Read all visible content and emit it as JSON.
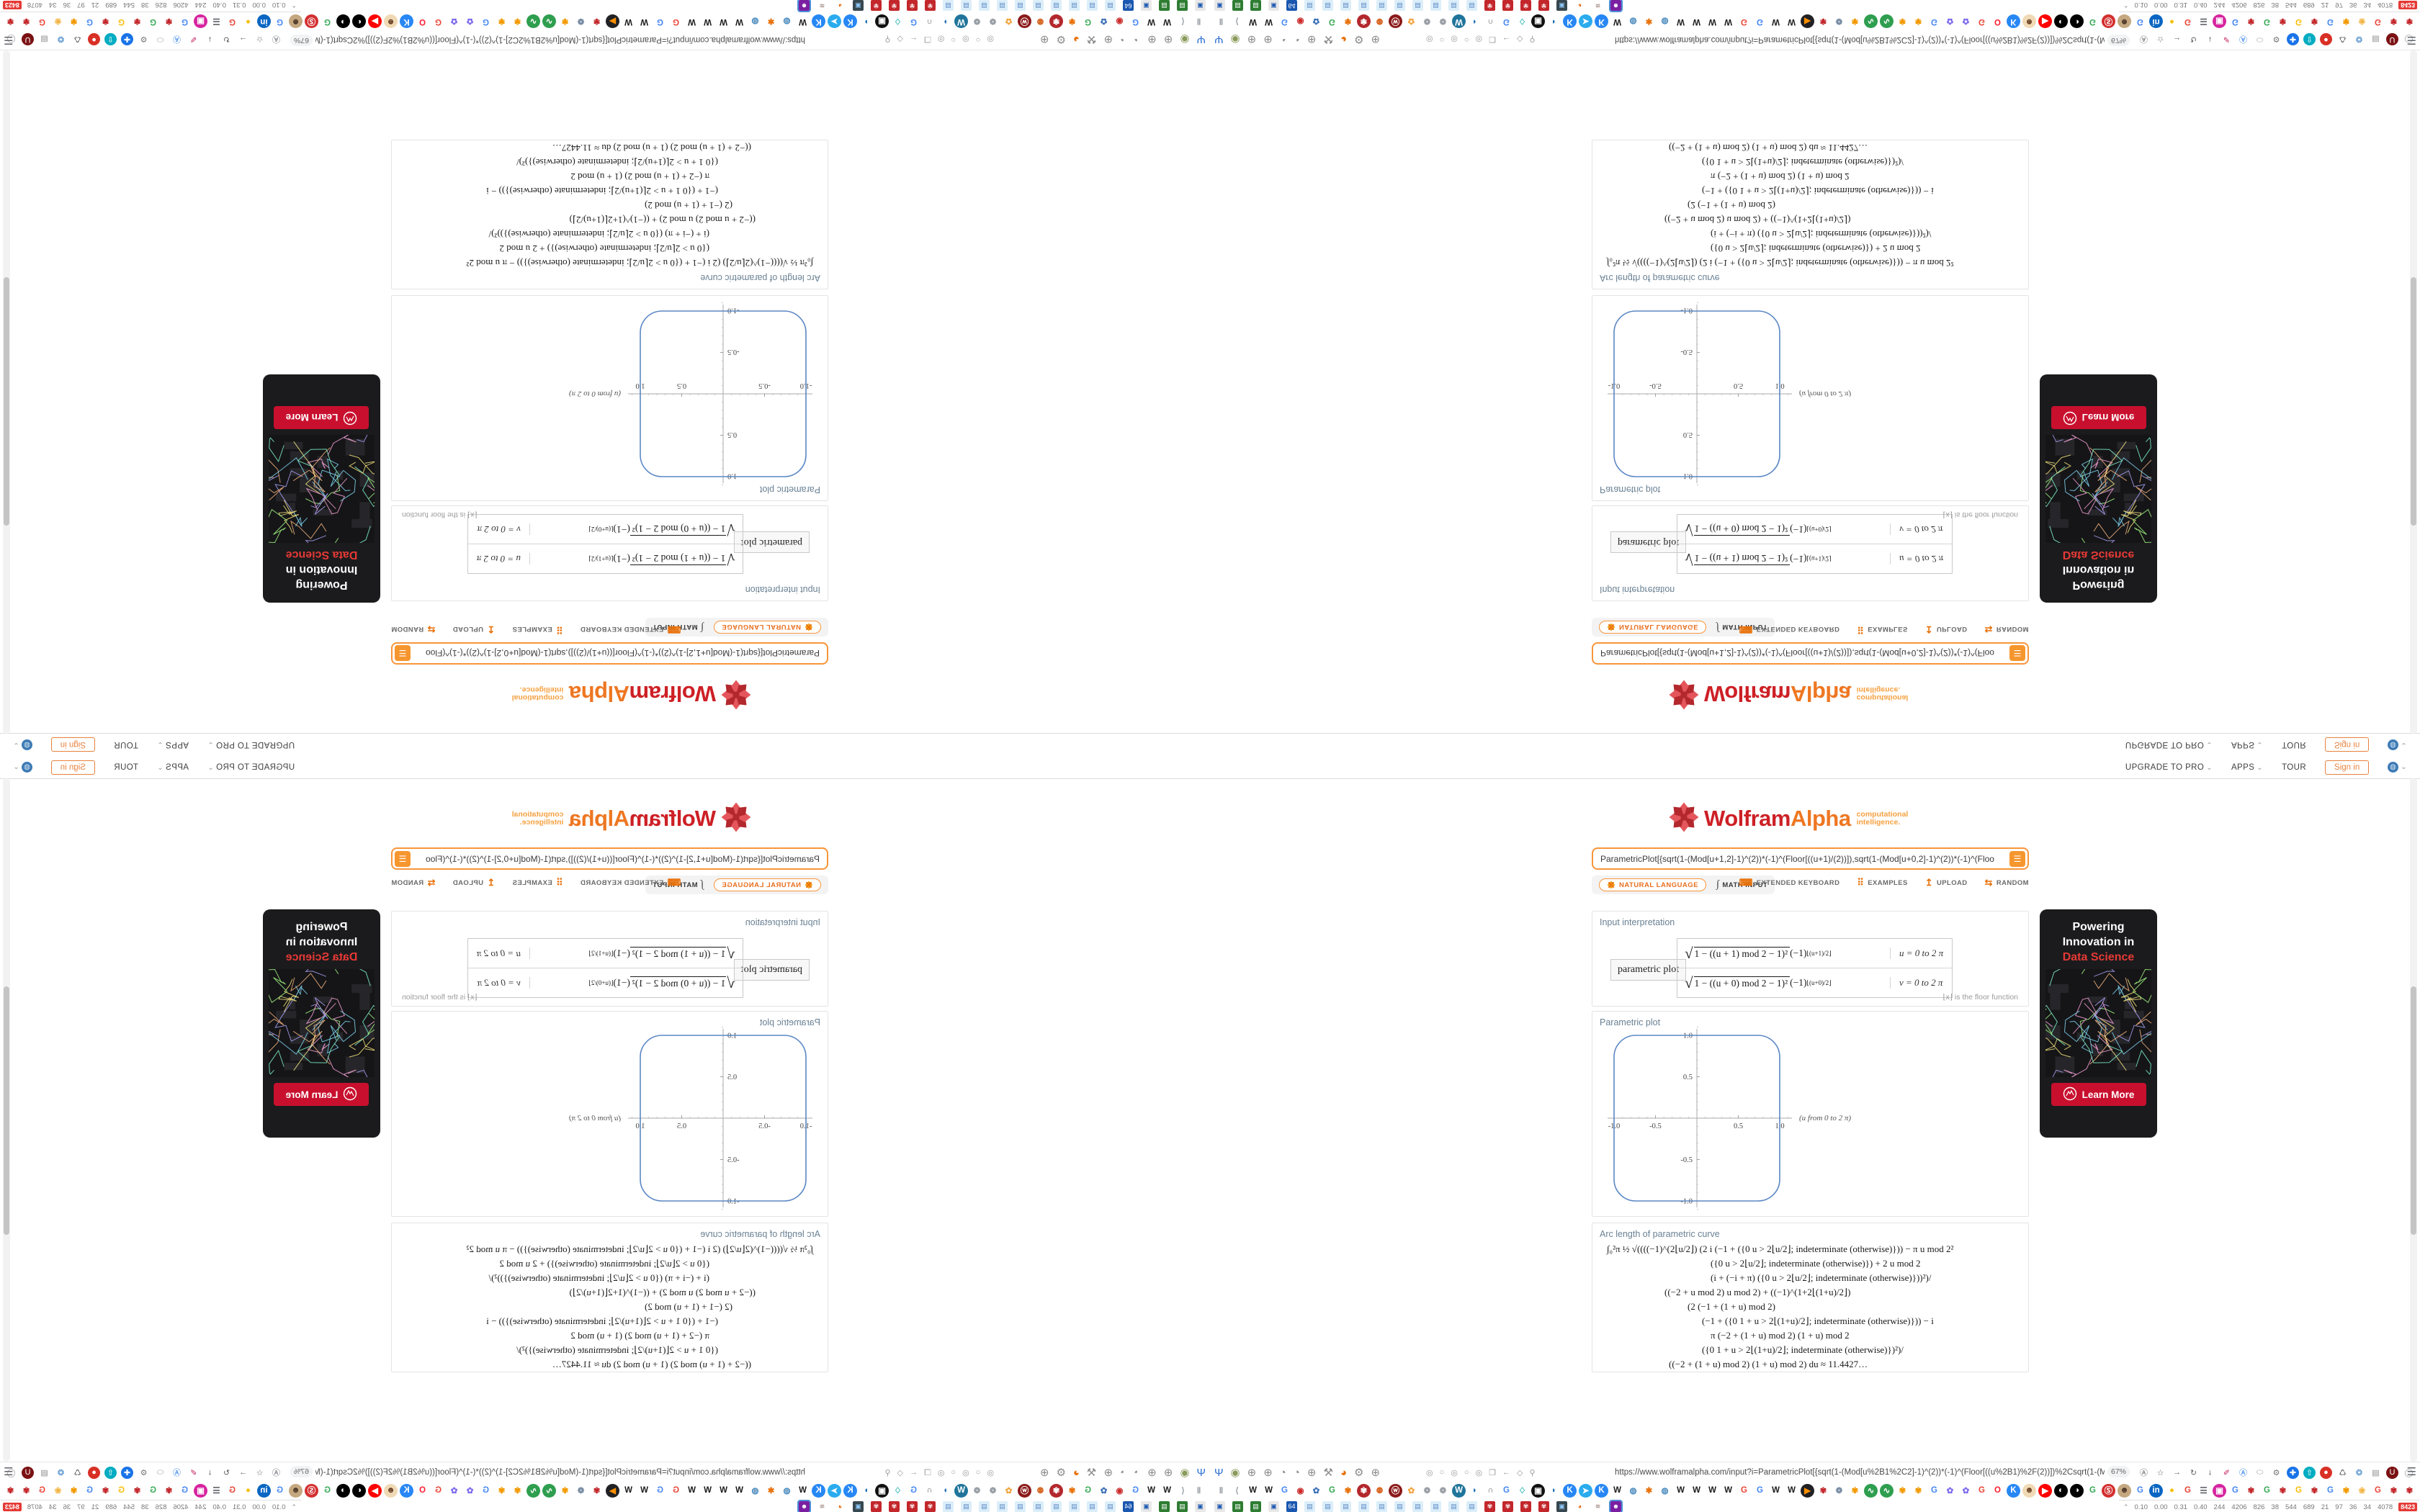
{
  "glyphs": {
    "caret_down": "⌄",
    "caret_up": "⌃",
    "chev_right": "❯",
    "menu": "☰",
    "star": "☆",
    "back": "←",
    "submit": "☰",
    "globe": "◍"
  },
  "page": {
    "nav": {
      "upgrade": "UPGRADE TO PRO",
      "apps": "APPS",
      "tour": "TOUR",
      "sign_in": "Sign in"
    },
    "logo": {
      "wolfram": "Wolfram",
      "alpha": "Alpha",
      "tagline1": "computational",
      "tagline2": "intelligence."
    },
    "query_input": {
      "value": "ParametricPlot[{sqrt(1-(Mod[u+1,2]-1)^(2))*(-1)^(Floor[((u+1)/(2))]),sqrt(1-(Mod[u+0,2]-1)^(2))*(-1)^(Floo"
    },
    "modes": {
      "natural": "NATURAL LANGUAGE",
      "math": "MATH INPUT",
      "math_icon": "∫"
    },
    "tools": [
      {
        "icon": "⌨",
        "label": "EXTENDED KEYBOARD"
      },
      {
        "icon": "⠿",
        "label": "EXAMPLES"
      },
      {
        "icon": "↥",
        "label": "UPLOAD"
      },
      {
        "icon": "⇆",
        "label": "RANDOM"
      }
    ],
    "interpretation": {
      "title": "Input interpretation",
      "label": "parametric plot",
      "rows": [
        {
          "radicand": "1 − ((u + 1) mod 2 − 1)²",
          "base": "(−1)",
          "exp": "⌊(u+1)/2⌋",
          "range": "u = 0 to 2 π"
        },
        {
          "radicand": "1 − ((u + 0) mod 2 − 1)²",
          "base": "(−1)",
          "exp": "⌊(u+0)/2⌋",
          "range": "v = 0 to 2 π"
        }
      ],
      "footnote": "⌊x⌋ is the floor function"
    },
    "plot": {
      "title": "Parametric plot",
      "axis_note": "(u from 0 to 2 π)",
      "x_ticks": [
        {
          "v": -1,
          "label": "-1.0"
        },
        {
          "v": -0.5,
          "label": "-0.5"
        },
        {
          "v": 0.5,
          "label": "0.5"
        },
        {
          "v": 1,
          "label": "1.0"
        }
      ],
      "y_ticks": [
        {
          "v": 1,
          "label": "1.0"
        },
        {
          "v": 0.5,
          "label": "0.5"
        },
        {
          "v": -0.5,
          "label": "-0.5"
        },
        {
          "v": -1,
          "label": "-1.0"
        }
      ],
      "curve_color": "#5b87c5"
    },
    "arc": {
      "title": "Arc length of parametric curve",
      "lines": [
        {
          "indent": 6,
          "text": "∫₀²π  ½ √((((−1)^(2⌊u/2⌋) (2 i (−1 + ({0  u > 2⌊u/2⌋; indeterminate (otherwise)})) − π u mod 2²"
        },
        {
          "indent": 150,
          "text": "({0  u > 2⌊u/2⌋; indeterminate (otherwise)}) + 2 u mod 2"
        },
        {
          "indent": 150,
          "text": "(i + (−i + π) ({0  u > 2⌊u/2⌋; indeterminate (otherwise)}))²)/"
        },
        {
          "indent": 86,
          "text": "((−2 + u mod 2) u mod 2) + ((−1)^(1+2⌊(1+u)/2⌋)"
        },
        {
          "indent": 118,
          "text": "(2 (−1 + (1 + u) mod 2)"
        },
        {
          "indent": 138,
          "text": "(−1 + ({0  1 + u > 2⌊(1+u)/2⌋; indeterminate (otherwise)})) − i"
        },
        {
          "indent": 150,
          "text": "π (−2 + (1 + u) mod 2) (1 + u) mod 2"
        },
        {
          "indent": 138,
          "text": "({0  1 + u > 2⌊(1+u)/2⌋; indeterminate (otherwise)})²)/"
        },
        {
          "indent": 92,
          "text": "((−2 + (1 + u) mod 2) (1 + u) mod 2) du ≈ 11.4427…"
        }
      ]
    },
    "ad": {
      "line1": "Powering",
      "line2": "Innovation in",
      "line3": "Data Science",
      "button": "Learn More"
    }
  },
  "chrome": {
    "url": "https://www.wolframalpha.com/input?i=ParametricPlot[{sqrt(1-(Mod[u%2B1%2C2]-1)^(2))*(-1)^(Floor[((u%2B1)%2F(2))])%2Csqrt(1-(Mod[u%2B0%2C2]-1)^(2))*(-1)^(Floor[((u%2B0",
    "zoom": "67%",
    "left_icons": [
      {
        "g": "Ψ",
        "fg": "#2f6fd6"
      },
      {
        "g": "◉",
        "fg": "#8a9a5b"
      },
      {
        "g": "⊕",
        "fg": "#8a8a8a"
      },
      {
        "g": "⊕",
        "fg": "#8a8a8a"
      },
      {
        "g": "◔",
        "fg": "#8a8a8a"
      },
      {
        "g": "◔",
        "fg": "#8a8a8a"
      },
      {
        "g": "⊕",
        "fg": "#8a8a8a"
      },
      {
        "g": "⚒",
        "fg": "#8a8a8a"
      },
      {
        "g": "◕",
        "fg": "#e8710a"
      },
      {
        "g": "⚙",
        "fg": "#8a8a8a"
      },
      {
        "g": "⊕",
        "fg": "#8a8a8a"
      }
    ],
    "dot_icons": [
      {
        "g": "◎"
      },
      {
        "g": "○"
      },
      {
        "g": "◎"
      },
      {
        "g": "○"
      },
      {
        "g": "◎"
      },
      {
        "g": "❐"
      },
      {
        "g": "←"
      },
      {
        "g": "◇"
      },
      {
        "g": "⚲"
      }
    ],
    "action_icons": [
      {
        "g": "Ⓐ",
        "fg": "#5f6368"
      },
      {
        "g": "☆",
        "fg": "#5f6368"
      },
      {
        "g": "→",
        "fg": "#5f6368"
      },
      {
        "g": "↻",
        "fg": "#5f6368"
      },
      {
        "g": "↓",
        "fg": "#333333"
      },
      {
        "g": "✐",
        "fg": "#c2185b"
      },
      {
        "g": "Ⓐ",
        "fg": "#1a73e8"
      },
      {
        "g": "⬭",
        "fg": "#9e9e9e"
      },
      {
        "g": "⚙",
        "fg": "#757575"
      },
      {
        "g": "✚",
        "bg": "#1a73e8",
        "fg": "#ffffff"
      },
      {
        "g": "⇧",
        "bg": "#00acc1",
        "fg": "#ffffff"
      },
      {
        "g": "●",
        "bg": "#d93025",
        "fg": "#ffffff"
      },
      {
        "g": "♺",
        "fg": "#333333"
      },
      {
        "g": "❂",
        "fg": "#3b82c4"
      },
      {
        "g": "▤",
        "fg": "#8a8a8a"
      },
      {
        "g": "U",
        "bg": "#7b1113",
        "fg": "#ffffff"
      },
      {
        "g": "◯",
        "fg": "#9e9e9e"
      },
      {
        "g": "⊕",
        "fg": "#9e9e9e"
      },
      {
        "g": "⚐",
        "fg": "#8a8a8a"
      },
      {
        "g": "⚒",
        "fg": "#8a8a8a"
      },
      {
        "g": "⚙",
        "fg": "#8a8a8a"
      }
    ],
    "favicons": [
      {
        "g": "Ⅱ",
        "bg": "#ffffff",
        "fg": "#9aa0a6"
      },
      {
        "g": "⟨",
        "bg": "#ffffff",
        "fg": "#9aa0a6"
      },
      {
        "g": "W",
        "bg": "#ffffff",
        "fg": "#1a1a1a"
      },
      {
        "g": "W",
        "bg": "#ffffff",
        "fg": "#1a1a1a"
      },
      {
        "g": "G",
        "bg": "#ffffff",
        "fg": "#4285f4"
      },
      {
        "g": "◉",
        "bg": "#ffffff",
        "fg": "#cc2b2b"
      },
      {
        "g": "✿",
        "bg": "#ffffff",
        "fg": "#3b6fb6"
      },
      {
        "g": "G",
        "bg": "#ffffff",
        "fg": "#34a853"
      },
      {
        "g": "✾",
        "bg": "#ffffff",
        "fg": "#e8710a"
      },
      {
        "g": "✾",
        "bg": "#b3282d",
        "fg": "#ffffff"
      },
      {
        "g": "⚉",
        "bg": "#ffffff",
        "fg": "#d86b2a"
      },
      {
        "g": "ⓦ",
        "bg": "#8b1a1a",
        "fg": "#ffffff"
      },
      {
        "g": "✿",
        "bg": "#ffffff",
        "fg": "#f3a33c"
      },
      {
        "g": "❁",
        "bg": "#ffffff",
        "fg": "#9aa0a6"
      },
      {
        "g": "❁",
        "bg": "#ffffff",
        "fg": "#9aa0a6"
      },
      {
        "g": "W",
        "bg": "#21759b",
        "fg": "#ffffff"
      },
      {
        "g": "◗",
        "bg": "#ffffff",
        "fg": "#1767ae"
      },
      {
        "g": "∩",
        "bg": "#ffffff",
        "fg": "#5f6368"
      },
      {
        "g": "G",
        "bg": "#ffffff",
        "fg": "#4285f4"
      },
      {
        "g": "♢",
        "bg": "#ffffff",
        "fg": "#18b0b0"
      },
      {
        "g": "▣",
        "bg": "#111111",
        "fg": "#ffffff"
      },
      {
        "g": "◗",
        "bg": "#ffffff",
        "fg": "#1767ae"
      },
      {
        "g": "K",
        "bg": "#2787f5",
        "fg": "#ffffff"
      },
      {
        "g": "➤",
        "bg": "#2aabee",
        "fg": "#ffffff"
      },
      {
        "g": "K",
        "bg": "#2787f5",
        "fg": "#ffffff"
      },
      {
        "g": "W",
        "bg": "#ffffff",
        "fg": "#1a1a1a"
      },
      {
        "g": "◍",
        "bg": "#ffffff",
        "fg": "#4b8bbe"
      },
      {
        "g": "✱",
        "bg": "#ffffff",
        "fg": "#e8710a"
      },
      {
        "g": "◍",
        "bg": "#ffffff",
        "fg": "#4b8bbe"
      },
      {
        "g": "W",
        "bg": "#ffffff",
        "fg": "#1a1a1a"
      },
      {
        "g": "W",
        "bg": "#ffffff",
        "fg": "#1a1a1a"
      },
      {
        "g": "W",
        "bg": "#ffffff",
        "fg": "#1a1a1a"
      },
      {
        "g": "W",
        "bg": "#ffffff",
        "fg": "#1a1a1a"
      },
      {
        "g": "G",
        "bg": "#ffffff",
        "fg": "#ea4335"
      },
      {
        "g": "G",
        "bg": "#ffffff",
        "fg": "#4285f4"
      },
      {
        "g": "W",
        "bg": "#ffffff",
        "fg": "#1a1a1a"
      },
      {
        "g": "W",
        "bg": "#ffffff",
        "fg": "#1a1a1a"
      },
      {
        "g": "▶",
        "bg": "#202124",
        "fg": "#ff8f00"
      },
      {
        "g": "✾",
        "bg": "#ffffff",
        "fg": "#c3272b"
      },
      {
        "g": "❁",
        "bg": "#ffffff",
        "fg": "#7b8fa6"
      },
      {
        "g": "✾",
        "bg": "#ffffff",
        "fg": "#f29900"
      },
      {
        "g": "∿",
        "bg": "#2e9e4f",
        "fg": "#ffffff"
      },
      {
        "g": "∿",
        "bg": "#2e9e4f",
        "fg": "#ffffff"
      },
      {
        "g": "✾",
        "bg": "#ffffff",
        "fg": "#f29900"
      },
      {
        "g": "✾",
        "bg": "#ffffff",
        "fg": "#f29900"
      },
      {
        "g": "G",
        "bg": "#ffffff",
        "fg": "#4285f4"
      },
      {
        "g": "✿",
        "bg": "#ffffff",
        "fg": "#7b68ee"
      },
      {
        "g": "✿",
        "bg": "#ffffff",
        "fg": "#7b68ee"
      },
      {
        "g": "G",
        "bg": "#ffffff",
        "fg": "#ea4335"
      },
      {
        "g": "O",
        "bg": "#ffffff",
        "fg": "#ff1b2d"
      },
      {
        "g": "K",
        "bg": "#2787f5",
        "fg": "#ffffff"
      },
      {
        "g": "☻",
        "bg": "#f0d9b5",
        "fg": "#6b4226"
      },
      {
        "g": "▶",
        "bg": "#ff0000",
        "fg": "#ffffff"
      },
      {
        "g": "◐",
        "bg": "#000000",
        "fg": "#ffffff"
      },
      {
        "g": "◑",
        "bg": "#000000",
        "fg": "#ffffff"
      },
      {
        "g": "G",
        "bg": "#ffffff",
        "fg": "#34a853"
      },
      {
        "g": "Ⓢ",
        "bg": "#d32f2f",
        "fg": "#ffffff"
      },
      {
        "g": "☻",
        "bg": "#c5a880",
        "fg": "#4a3726"
      },
      {
        "g": "G",
        "bg": "#ffffff",
        "fg": "#4285f4"
      },
      {
        "g": "in",
        "bg": "#0a66c2",
        "fg": "#ffffff"
      },
      {
        "g": "●",
        "bg": "#ffffff",
        "fg": "#f4c20d"
      },
      {
        "g": "G",
        "bg": "#ffffff",
        "fg": "#ea4335"
      },
      {
        "g": "☰",
        "bg": "#ffffff",
        "fg": "#5f6368"
      },
      {
        "g": "▣",
        "bg": "#d6249f",
        "fg": "#ffffff"
      },
      {
        "g": "G",
        "bg": "#ffffff",
        "fg": "#4285f4"
      },
      {
        "g": "✾",
        "bg": "#ffffff",
        "fg": "#c3272b"
      },
      {
        "g": "G",
        "bg": "#ffffff",
        "fg": "#34a853"
      },
      {
        "g": "✾",
        "bg": "#ffffff",
        "fg": "#c3272b"
      },
      {
        "g": "G",
        "bg": "#ffffff",
        "fg": "#fbbc05"
      },
      {
        "g": "✾",
        "bg": "#ffffff",
        "fg": "#c3272b"
      },
      {
        "g": "G",
        "bg": "#ffffff",
        "fg": "#4285f4"
      },
      {
        "g": "✾",
        "bg": "#ffffff",
        "fg": "#f29900"
      },
      {
        "g": "❀",
        "bg": "#ffffff",
        "fg": "#f3b13c"
      },
      {
        "g": "G",
        "bg": "#ffffff",
        "fg": "#ea4335"
      },
      {
        "g": "✾",
        "bg": "#ffffff",
        "fg": "#c3272b"
      },
      {
        "g": "✾",
        "bg": "#ffffff",
        "fg": "#c3272b"
      },
      {
        "g": "G",
        "bg": "#ffffff",
        "fg": "#4285f4"
      },
      {
        "g": "❋",
        "bg": "#ffffff",
        "fg": "#b71c1c"
      },
      {
        "g": "✾",
        "bg": "#ffffff",
        "fg": "#c3272b"
      },
      {
        "g": "✾",
        "bg": "#ffffff",
        "fg": "#c3272b"
      },
      {
        "g": "G",
        "bg": "#ffffff",
        "fg": "#34a853"
      },
      {
        "g": "✾",
        "bg": "#ffffff",
        "fg": "#f29900"
      },
      {
        "g": "✾",
        "bg": "#ffffff",
        "fg": "#f29900"
      }
    ],
    "taskbar": [
      {
        "g": "▣",
        "bg": "#e8e8e8",
        "fg": "#1a57b0"
      },
      {
        "g": "▤",
        "bg": "#2e7d32",
        "fg": "#ffffff"
      },
      {
        "g": "▤",
        "bg": "#2e7d32",
        "fg": "#ffffff"
      },
      {
        "g": "▣",
        "bg": "#e8e8e8",
        "fg": "#1a57b0"
      },
      {
        "g": "64",
        "bg": "#1a57b0",
        "fg": "#ffffff"
      },
      {
        "g": "▤",
        "bg": "#dbeef9",
        "fg": "#5b87c5"
      },
      {
        "g": "▤",
        "bg": "#dbeef9",
        "fg": "#5b87c5"
      },
      {
        "g": "▤",
        "bg": "#dbeef9",
        "fg": "#5b87c5"
      },
      {
        "g": "▤",
        "bg": "#dbeef9",
        "fg": "#5b87c5"
      },
      {
        "g": "▤",
        "bg": "#dbeef9",
        "fg": "#5b87c5"
      },
      {
        "g": "▤",
        "bg": "#dbeef9",
        "fg": "#5b87c5"
      },
      {
        "g": "▤",
        "bg": "#dbeef9",
        "fg": "#5b87c5"
      },
      {
        "g": "▤",
        "bg": "#dbeef9",
        "fg": "#5b87c5"
      },
      {
        "g": "▤",
        "bg": "#dbeef9",
        "fg": "#5b87c5"
      },
      {
        "g": "▤",
        "bg": "#dbeef9",
        "fg": "#5b87c5"
      },
      {
        "g": "✾",
        "bg": "#c3272b",
        "fg": "#ffffff"
      },
      {
        "g": "✾",
        "bg": "#c3272b",
        "fg": "#ffffff"
      },
      {
        "g": "✾",
        "bg": "#c3272b",
        "fg": "#ffffff"
      },
      {
        "g": "✾",
        "bg": "#c3272b",
        "fg": "#ffffff"
      },
      {
        "g": "▣",
        "bg": "#37474f",
        "fg": "#90caf9"
      },
      {
        "g": "◕",
        "bg": "#ffffff",
        "fg": "#e66000"
      },
      {
        "g": "≋",
        "bg": "#ffffff",
        "fg": "#8d6e63"
      },
      {
        "g": "☻",
        "bg": "#7b1fa2",
        "fg": "#ffffff",
        "hl": true
      }
    ],
    "stats": {
      "values": [
        "0.10",
        "0.00",
        "0.31",
        "0.40",
        "244",
        "4206",
        "826",
        "38",
        "544",
        "689",
        "21",
        "97",
        "36",
        "34",
        "4078"
      ],
      "badge": "8423",
      "spark_colors": [
        "#f2d024",
        "#22a06b",
        "#5b21b6",
        "#a3a322",
        "#795548",
        "#c0392b",
        "#27ae60"
      ]
    }
  },
  "chart_data": {
    "type": "line",
    "title": "Parametric plot",
    "description": "Closed rounded-square (squircle) parametric curve traced for u from 0 to 2π; edges flat at x=±1 and y=±1 with rounded corners",
    "x_ticks": [
      -1.0,
      -0.5,
      0.5,
      1.0
    ],
    "y_ticks": [
      -1.0,
      -0.5,
      0.5,
      1.0
    ],
    "xlim": [
      -1.2,
      1.4
    ],
    "ylim": [
      -1.15,
      1.15
    ],
    "annotation": "(u from 0 to 2 π)",
    "arc_length": 11.4427
  }
}
